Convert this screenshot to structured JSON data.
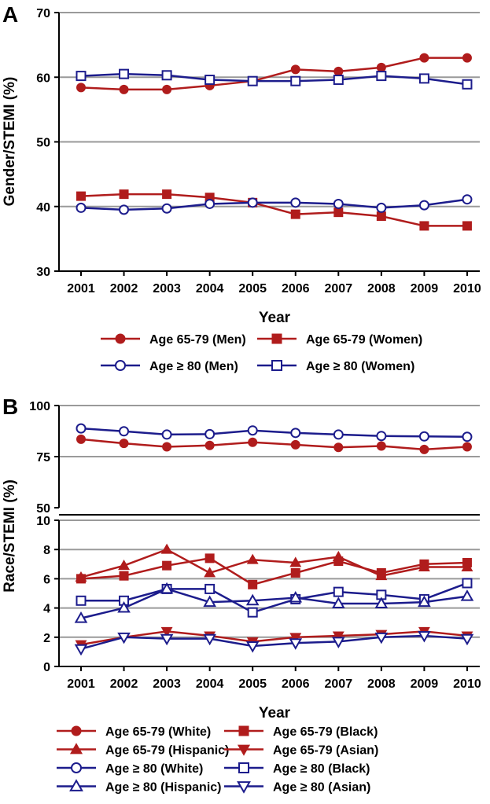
{
  "chart_data": [
    {
      "panel": "A",
      "type": "line",
      "xlabel": "Year",
      "ylabel": "Gender/STEMI (%)",
      "ylim": [
        30,
        70
      ],
      "yticks": [
        "30",
        "40",
        "50",
        "60",
        "70"
      ],
      "grid": true,
      "categories": [
        "2001",
        "2002",
        "2003",
        "2004",
        "2005",
        "2006",
        "2007",
        "2008",
        "2009",
        "2010"
      ],
      "series": [
        {
          "name": "Age 65-79 (Men)",
          "color": "#b01c1c",
          "marker": "circle",
          "filled": true,
          "values": [
            58.4,
            58.1,
            58.1,
            58.7,
            59.4,
            61.2,
            60.9,
            61.5,
            63.0,
            63.0
          ]
        },
        {
          "name": "Age 65-79 (Women)",
          "color": "#b01c1c",
          "marker": "square",
          "filled": true,
          "values": [
            41.6,
            41.9,
            41.9,
            41.4,
            40.6,
            38.8,
            39.1,
            38.5,
            37.0,
            37.0
          ]
        },
        {
          "name": "Age ≥ 80 (Men)",
          "color": "#1c1c8c",
          "marker": "circle",
          "filled": false,
          "values": [
            39.8,
            39.5,
            39.7,
            40.4,
            40.6,
            40.6,
            40.4,
            39.8,
            40.2,
            41.1
          ]
        },
        {
          "name": "Age ≥ 80 (Women)",
          "color": "#1c1c8c",
          "marker": "square",
          "filled": false,
          "values": [
            60.2,
            60.5,
            60.3,
            59.6,
            59.4,
            59.4,
            59.6,
            60.2,
            59.8,
            58.9
          ]
        }
      ]
    },
    {
      "panel": "B",
      "type": "line",
      "xlabel": "Year",
      "ylabel": "Race/STEMI (%)",
      "y_broken_axis": true,
      "upper_ylim": [
        50,
        100
      ],
      "upper_yticks": [
        "50",
        "75",
        "100"
      ],
      "lower_ylim": [
        0,
        10
      ],
      "lower_yticks": [
        "0",
        "2",
        "4",
        "6",
        "8",
        "10"
      ],
      "grid": true,
      "categories": [
        "2001",
        "2002",
        "2003",
        "2004",
        "2005",
        "2006",
        "2007",
        "2008",
        "2009",
        "2010"
      ],
      "series": [
        {
          "name": "Age 65-79 (White)",
          "color": "#b01c1c",
          "marker": "circle",
          "filled": true,
          "values": [
            83.5,
            81.5,
            79.8,
            80.5,
            82.0,
            80.8,
            79.5,
            80.2,
            78.5,
            79.8
          ]
        },
        {
          "name": "Age 65-79 (Black)",
          "color": "#b01c1c",
          "marker": "square",
          "filled": true,
          "values": [
            6.0,
            6.2,
            6.9,
            7.4,
            5.6,
            6.4,
            7.2,
            6.4,
            7.0,
            7.1
          ]
        },
        {
          "name": "Age 65-79 (Hispanic)",
          "color": "#b01c1c",
          "marker": "triangle-up",
          "filled": true,
          "values": [
            6.1,
            6.9,
            8.0,
            6.4,
            7.3,
            7.1,
            7.5,
            6.2,
            6.8,
            6.8
          ]
        },
        {
          "name": "Age 65-79 (Asian)",
          "color": "#b01c1c",
          "marker": "triangle-down",
          "filled": true,
          "values": [
            1.5,
            2.0,
            2.4,
            2.1,
            1.7,
            2.0,
            2.1,
            2.2,
            2.4,
            2.1
          ]
        },
        {
          "name": "Age ≥ 80 (White)",
          "color": "#1c1c8c",
          "marker": "circle",
          "filled": false,
          "values": [
            88.8,
            87.4,
            85.8,
            86.0,
            87.8,
            86.6,
            85.8,
            85.1,
            84.9,
            84.7
          ]
        },
        {
          "name": "Age ≥ 80 (Black)",
          "color": "#1c1c8c",
          "marker": "square",
          "filled": false,
          "values": [
            4.5,
            4.5,
            5.3,
            5.3,
            3.7,
            4.6,
            5.1,
            4.9,
            4.6,
            5.7
          ]
        },
        {
          "name": "Age ≥ 80 (Hispanic)",
          "color": "#1c1c8c",
          "marker": "triangle-up",
          "filled": false,
          "values": [
            3.3,
            4.0,
            5.3,
            4.4,
            4.5,
            4.7,
            4.3,
            4.3,
            4.4,
            4.8
          ]
        },
        {
          "name": "Age ≥ 80 (Asian)",
          "color": "#1c1c8c",
          "marker": "triangle-down",
          "filled": false,
          "values": [
            1.2,
            2.0,
            1.9,
            1.9,
            1.4,
            1.6,
            1.7,
            2.0,
            2.1,
            1.9
          ]
        }
      ]
    }
  ]
}
